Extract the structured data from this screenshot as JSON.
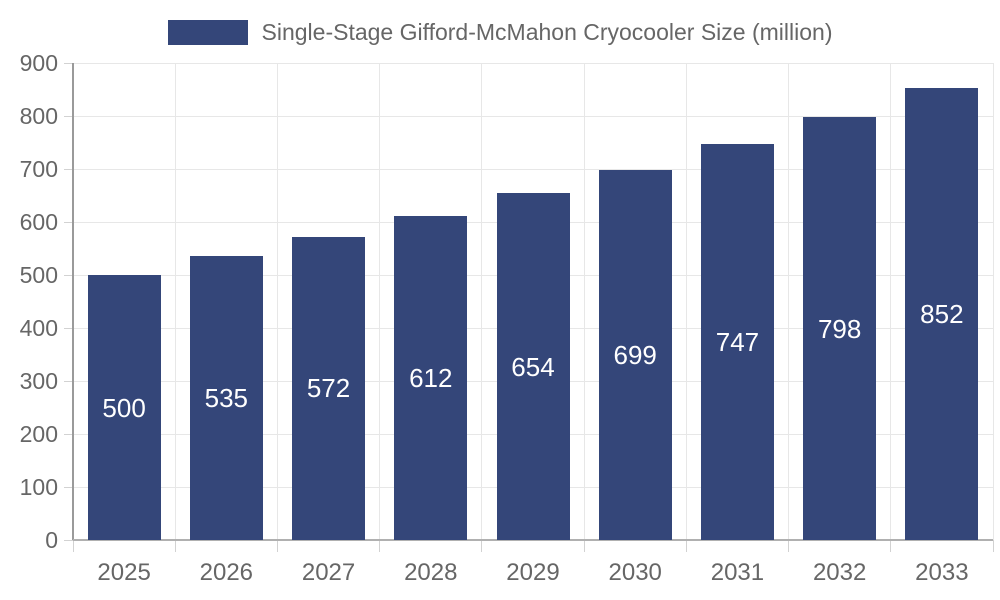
{
  "chart_data": {
    "type": "bar",
    "title": "Single-Stage Gifford-McMahon Cryocooler Size (million)",
    "legend": {
      "label": "Single-Stage Gifford-McMahon Cryocooler Size (million)",
      "position": "top-center"
    },
    "categories": [
      "2025",
      "2026",
      "2027",
      "2028",
      "2029",
      "2030",
      "2031",
      "2032",
      "2033"
    ],
    "series": [
      {
        "name": "Single-Stage Gifford-McMahon Cryocooler Size (million)",
        "values": [
          500,
          535,
          572,
          612,
          654,
          699,
          747,
          798,
          852
        ]
      }
    ],
    "bar_labels": [
      "500",
      "535",
      "572",
      "612",
      "654",
      "699",
      "747",
      "798",
      "852"
    ],
    "xlabel": "",
    "ylabel": "",
    "ylim": [
      0,
      900
    ],
    "y_tick_step": 100,
    "y_tick_labels": [
      "0",
      "100",
      "200",
      "300",
      "400",
      "500",
      "600",
      "700",
      "800",
      "900"
    ],
    "grid": true,
    "colors": {
      "bar": "#344679",
      "bar_label": "#ffffff",
      "axis_text": "#666666",
      "grid_line": "#e7e7e7",
      "y_axis_line": "#9a9a9a",
      "x_axis_line": "#b0b0b0",
      "tick_mark": "#d2d2d2",
      "background": "#ffffff"
    }
  }
}
